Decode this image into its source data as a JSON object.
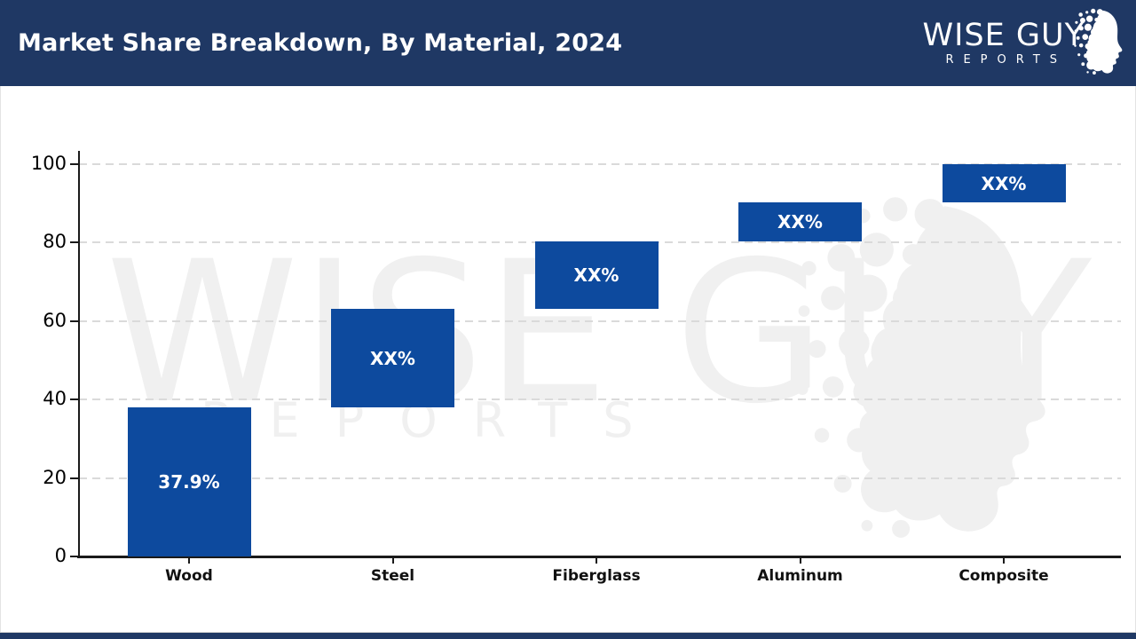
{
  "header": {
    "title": "Market Share Breakdown, By Material, 2024",
    "logo": {
      "line1": "WISE GUY",
      "line2": "REPORTS"
    }
  },
  "watermark": {
    "line1": "WISE GUY",
    "line2": "REPORTS"
  },
  "chart_data": {
    "type": "bar",
    "subtype": "waterfall",
    "title": "Market Share Breakdown, By Material, 2024",
    "categories": [
      "Wood",
      "Steel",
      "Fiberglass",
      "Aluminum",
      "Composite"
    ],
    "segments": [
      {
        "category": "Wood",
        "start": 0,
        "end": 37.9,
        "label": "37.9%"
      },
      {
        "category": "Steel",
        "start": 37.9,
        "end": 63.2,
        "label": "XX%"
      },
      {
        "category": "Fiberglass",
        "start": 63.2,
        "end": 80.3,
        "label": "XX%"
      },
      {
        "category": "Aluminum",
        "start": 80.3,
        "end": 90.2,
        "label": "XX%"
      },
      {
        "category": "Composite",
        "start": 90.2,
        "end": 100,
        "label": "XX%"
      }
    ],
    "yticks": [
      0,
      20,
      40,
      60,
      80,
      100
    ],
    "ylim": [
      0,
      105
    ],
    "xlabel": "",
    "ylabel": "",
    "grid": "horizontal-dashed",
    "legend": "none",
    "bar_color": "#0d4a9e",
    "bar_label_color": "#ffffff",
    "axis_color": "#1a1a1a"
  },
  "colors": {
    "header_bg": "#1f3864",
    "footer_bg": "#1f3864",
    "watermark": "#f0f0f0",
    "background": "#ffffff"
  }
}
